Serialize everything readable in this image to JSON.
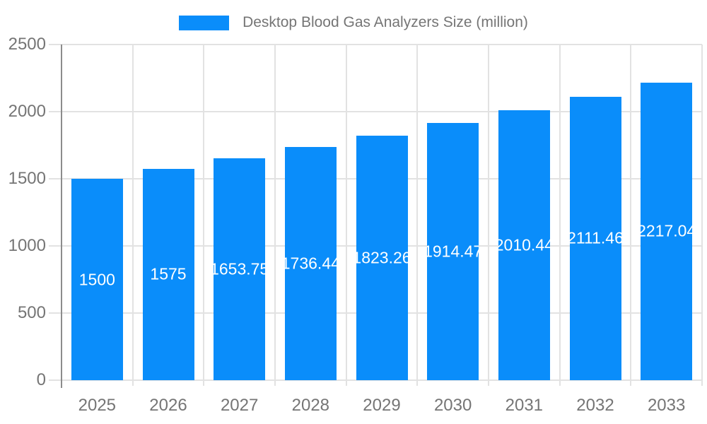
{
  "chart_data": {
    "type": "bar",
    "title": "Desktop Blood Gas Analyzers Size (million)",
    "series_name": "Desktop Blood Gas Analyzers Size (million)",
    "categories": [
      "2025",
      "2026",
      "2027",
      "2028",
      "2029",
      "2030",
      "2031",
      "2032",
      "2033"
    ],
    "values": [
      1500,
      1575,
      1653.75,
      1736.44,
      1823.26,
      1914.47,
      2010.44,
      2111.46,
      2217.04
    ],
    "value_labels": [
      "1500",
      "1575",
      "1653.75",
      "1736.44",
      "1823.26",
      "1914.47",
      "2010.44",
      "2111.46",
      "2217.04"
    ],
    "xlabel": "",
    "ylabel": "",
    "ylim": [
      0,
      2500
    ],
    "y_ticks": [
      0,
      500,
      1000,
      1500,
      2000,
      2500
    ],
    "grid": true,
    "legend_position": "top"
  },
  "colors": {
    "bar": "#0A8DFA",
    "grid": "#E2E2E2",
    "axis": "#8C8C8C",
    "tick_text": "#757575",
    "legend_text": "#757575",
    "bar_label": "#FFFFFF",
    "background": "#FFFFFF"
  }
}
